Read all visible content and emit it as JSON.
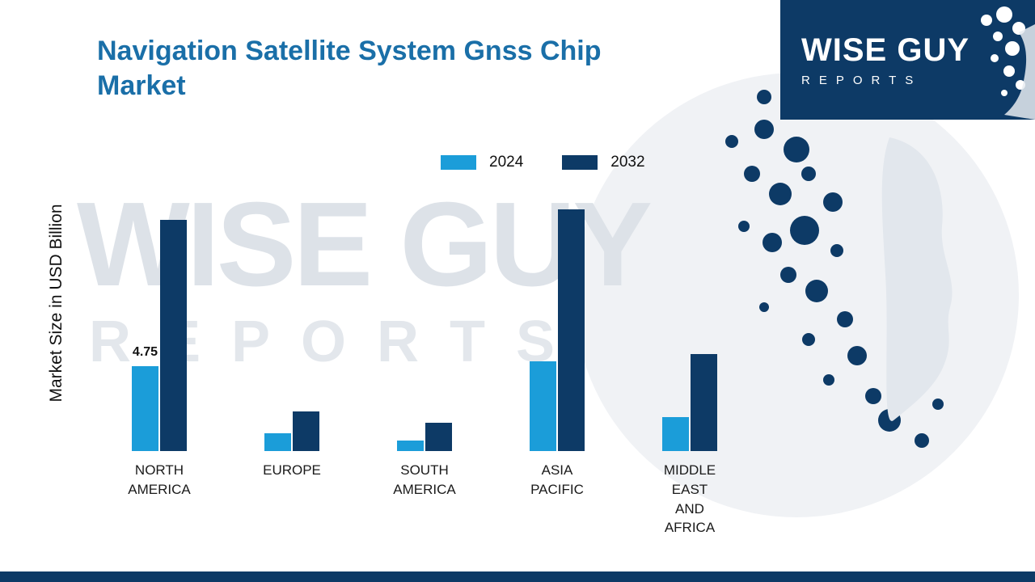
{
  "header": {
    "title": "Navigation Satellite System Gnss Chip Market",
    "logo": {
      "line1": "WISE GUY",
      "line2": "REPORTS"
    }
  },
  "watermark": {
    "line1": "WISE GUY",
    "line2": "REPORTS"
  },
  "colors": {
    "title_blue": "#1a6fa8",
    "series_2024": "#1b9dd9",
    "series_2032": "#0d3a66",
    "footer_navy": "#0d3a66",
    "watermark_gray": "#dde2e8"
  },
  "chart_data": {
    "type": "bar",
    "title": "",
    "xlabel": "",
    "ylabel": "Market Size in USD Billion",
    "categories": [
      "NORTH AMERICA",
      "EUROPE",
      "SOUTH AMERICA",
      "ASIA PACIFIC",
      "MIDDLE EAST AND AFRICA"
    ],
    "series": [
      {
        "name": "2024",
        "color": "#1b9dd9",
        "values": [
          4.75,
          1.0,
          0.6,
          5.0,
          1.9
        ]
      },
      {
        "name": "2032",
        "color": "#0d3a66",
        "values": [
          12.9,
          2.2,
          1.6,
          13.5,
          5.4
        ]
      }
    ],
    "ylim": [
      0,
      14
    ],
    "grid": false,
    "legend_position": "top",
    "value_labels": [
      {
        "series": "2024",
        "index": 0,
        "text": "4.75"
      }
    ]
  }
}
